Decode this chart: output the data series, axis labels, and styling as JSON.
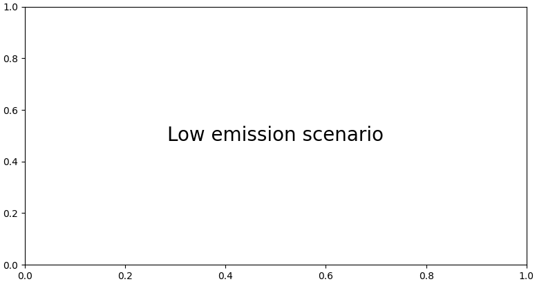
{
  "title": "Low emission scenario",
  "title_fontsize": 20,
  "title_fontweight": "bold",
  "background_color": "#ffffff",
  "ocean_color": "#ffffff",
  "land_base_color": "#d8d8d8",
  "border_color": "#333333",
  "colors": {
    "blue": "#7bafd4",
    "light_gray": "#dce5ed",
    "red": "#cc2222",
    "yellow": "#e8e855",
    "beige": "#e8e0d0"
  },
  "figsize": [
    7.77,
    4.11
  ],
  "dpi": 100
}
